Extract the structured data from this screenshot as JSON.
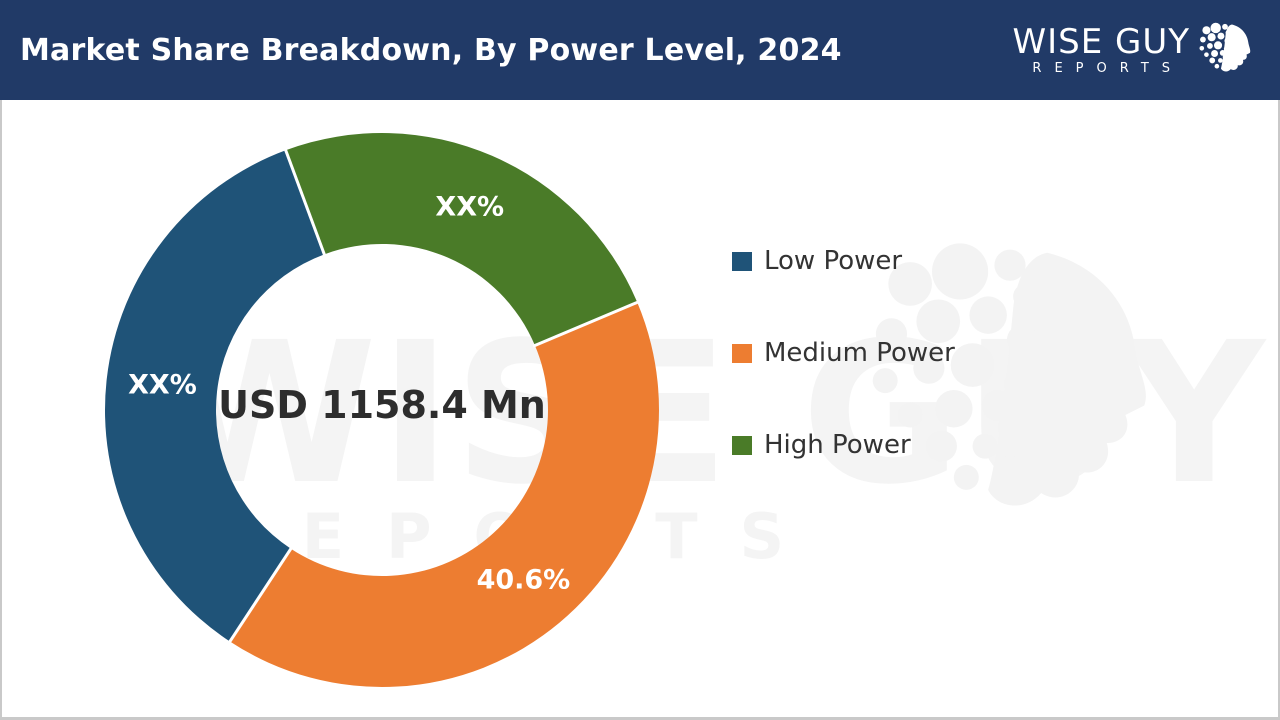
{
  "header": {
    "title": "Market Share Breakdown, By Power Level, 2024",
    "logo": {
      "line1": "WISE GUY",
      "line2": "REPORTS"
    }
  },
  "watermark": {
    "line1": "WISE GUY",
    "line2": "REPORTS"
  },
  "colors": {
    "header_bg": "#213A67",
    "low_power": "#1F5378",
    "medium_power": "#ED7D31",
    "high_power": "#4A7B28",
    "center_text": "#2D2D2D",
    "legend_text": "#333333",
    "watermark": "#F4F4F4",
    "border": "#C9C9C9"
  },
  "chart_data": {
    "type": "pie",
    "subtype": "donut",
    "title": "Market Share Breakdown, By Power Level, 2024",
    "center_label": "USD 1158.4 Mn",
    "rotation_deg": 213.3,
    "draw_order": [
      "Low Power",
      "High Power",
      "Medium Power"
    ],
    "legend_position": "right",
    "segments": [
      {
        "name": "Low Power",
        "value_pct": 35.1,
        "label": "XX%",
        "color": "#1F5378"
      },
      {
        "name": "Medium Power",
        "value_pct": 40.6,
        "label": "40.6%",
        "color": "#ED7D31"
      },
      {
        "name": "High Power",
        "value_pct": 24.3,
        "label": "XX%",
        "color": "#4A7B28"
      }
    ]
  },
  "legend": {
    "items": [
      {
        "label": "Low Power",
        "color": "#1F5378"
      },
      {
        "label": "Medium Power",
        "color": "#ED7D31"
      },
      {
        "label": "High Power",
        "color": "#4A7B28"
      }
    ]
  }
}
